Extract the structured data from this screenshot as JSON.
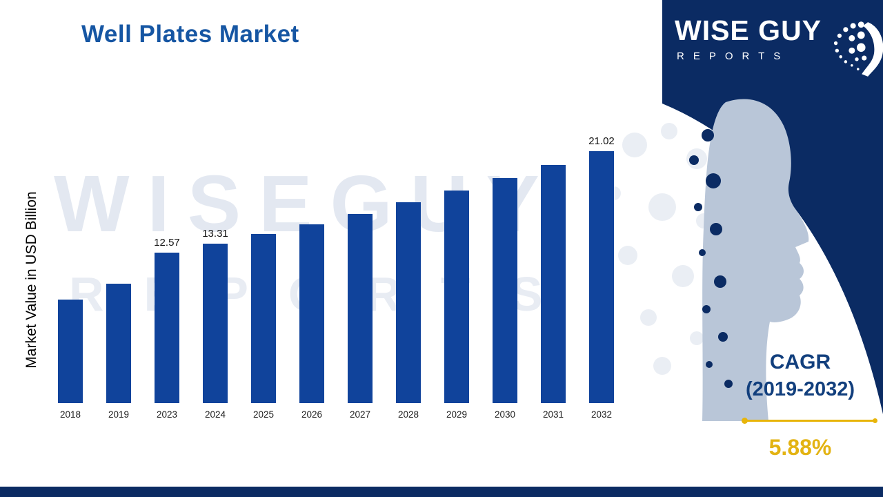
{
  "logo": {
    "line1": "WISE GUY",
    "line2": "REPORTS"
  },
  "watermark": {
    "line1": "WISEGUY",
    "line2": "REPORTS"
  },
  "cagr": {
    "label": "CAGR",
    "range": "(2019-2032)",
    "value": "5.88%"
  },
  "colors": {
    "title_blue": "#1656a3",
    "bar_blue": "#10439b",
    "panel_navy": "#0b2b63",
    "accent_gold": "#e3b312",
    "face_silhouette": "#b9c6d8"
  },
  "chart_data": {
    "type": "bar",
    "title": "Well Plates Market",
    "ylabel": "Market Value in USD Billion",
    "categories": [
      "2018",
      "2019",
      "2023",
      "2024",
      "2025",
      "2026",
      "2027",
      "2028",
      "2029",
      "2030",
      "2031",
      "2032"
    ],
    "values": [
      8.65,
      9.97,
      12.57,
      13.31,
      14.09,
      14.92,
      15.8,
      16.73,
      17.71,
      18.75,
      19.85,
      21.02
    ],
    "bar_labels": [
      "",
      "",
      "12.57",
      "13.31",
      "",
      "",
      "",
      "",
      "",
      "",
      "",
      "21.02"
    ],
    "ylim": [
      0,
      22
    ],
    "grid": false,
    "legend": "none"
  }
}
